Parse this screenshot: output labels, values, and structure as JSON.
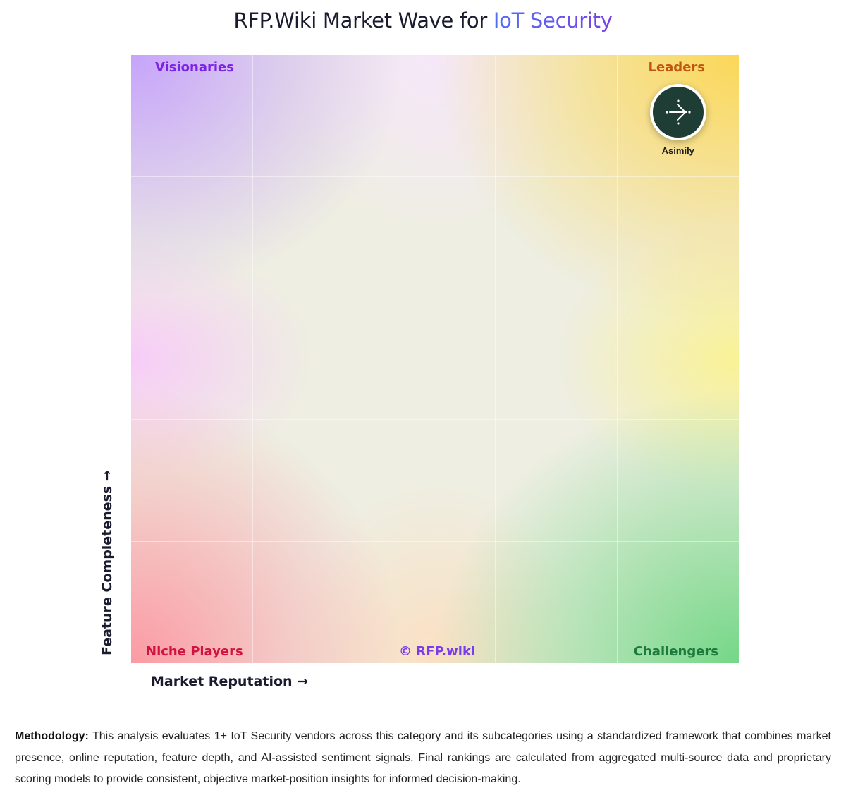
{
  "header": {
    "title_prefix": "RFP.Wiki Market Wave for ",
    "title_highlight": "IoT Security"
  },
  "chart_data": {
    "type": "scatter",
    "title": "RFP.Wiki Market Wave for IoT Security",
    "xlabel": "Market Reputation →",
    "ylabel": "Feature Completeness →",
    "xlim": [
      0,
      1
    ],
    "ylim": [
      0,
      1
    ],
    "grid": true,
    "quadrants": {
      "top_left": {
        "label": "Visionaries",
        "color": "#7c22e6"
      },
      "top_right": {
        "label": "Leaders",
        "color": "#c05510"
      },
      "bottom_left": {
        "label": "Niche Players",
        "color": "#d0133f"
      },
      "bottom_right": {
        "label": "Challengers",
        "color": "#1e7a3c"
      }
    },
    "watermark": {
      "label": "© RFP.wiki",
      "color": "#7a3de8"
    },
    "points": [
      {
        "label": "Asimily",
        "x": 0.9,
        "y": 0.91,
        "logo": "asimily-arrow-logo-icon"
      }
    ]
  },
  "methodology": {
    "label": "Methodology:",
    "text": "This analysis evaluates 1+ IoT Security vendors across this category and its subcategories using a standardized framework that combines market presence, online reputation, feature depth, and AI-assisted sentiment signals. Final rankings are calculated from aggregated multi-source data and proprietary scoring models to provide consistent, objective market-position insights for informed decision-making."
  }
}
